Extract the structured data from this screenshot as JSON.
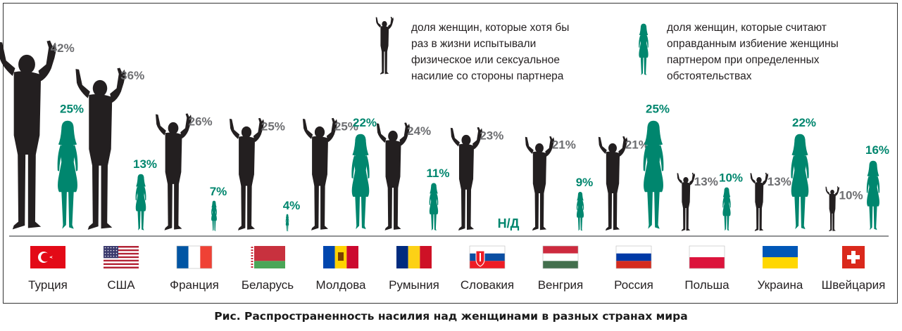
{
  "chart_data": {
    "type": "bar",
    "categories": [
      "Турция",
      "США",
      "Франция",
      "Беларусь",
      "Молдова",
      "Румыния",
      "Словакия",
      "Венгрия",
      "Россия",
      "Польша",
      "Украина",
      "Швейцария"
    ],
    "series": [
      {
        "name": "доля женщин, которые хотя бы раз в жизни испытывали физическое или сексуальное насилие со стороны партнера",
        "values": [
          42,
          36,
          26,
          25,
          25,
          24,
          23,
          21,
          21,
          13,
          13,
          10
        ],
        "labels": [
          "42%",
          "36%",
          "26%",
          "25%",
          "25%",
          "24%",
          "23%",
          "21%",
          "21%",
          "13%",
          "13%",
          "10%"
        ],
        "color": "#231f20",
        "label_color": "#6d6e71"
      },
      {
        "name": "доля женщин, которые считают оправданным избиение женщины партнером при определенных обстоятельствах",
        "values": [
          25,
          13,
          7,
          4,
          22,
          11,
          null,
          9,
          25,
          10,
          22,
          16
        ],
        "labels": [
          "25%",
          "13%",
          "7%",
          "4%",
          "22%",
          "11%",
          "Н/Д",
          "9%",
          "25%",
          "10%",
          "22%",
          "16%"
        ],
        "color": "#00866e",
        "label_color": "#00866e"
      }
    ],
    "flags": [
      "turkey",
      "usa",
      "france",
      "belarus",
      "moldova",
      "romania",
      "slovakia",
      "hungary",
      "russia",
      "poland",
      "ukraine",
      "switzerland"
    ],
    "legend": {
      "item1": "доля женщин, которые хотя бы\nраз в жизни испытывали\nфизическое или сексуальное\nнасилие со стороны партнера",
      "item2": "доля женщин, которые считают\nоправданным избиение женщины\nпартнером при определенных\nобстоятельствах"
    },
    "caption": "Рис. Распространенность насилия над женщинами в разных странах мира"
  }
}
